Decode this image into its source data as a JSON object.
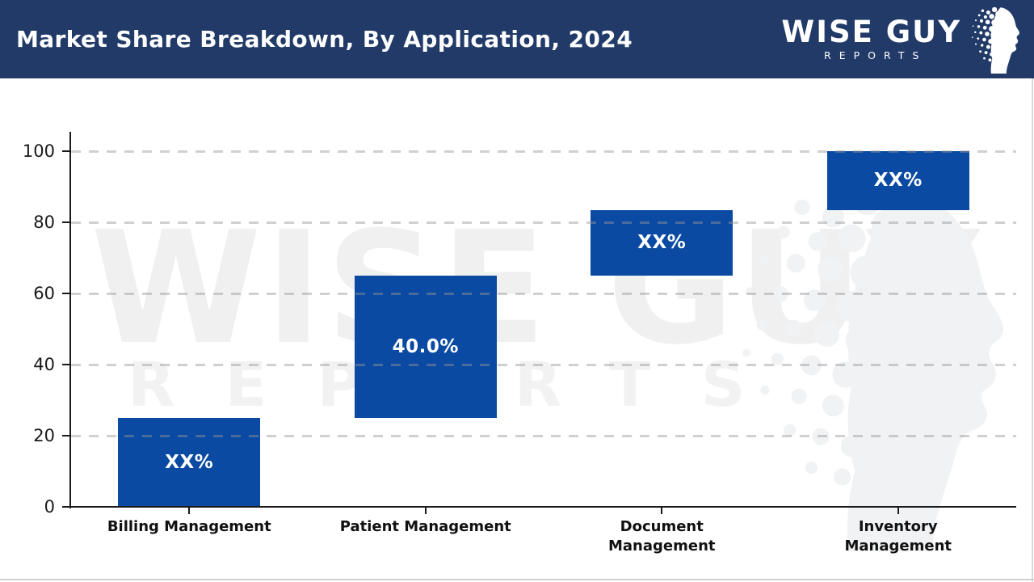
{
  "header": {
    "title": "Market Share Breakdown, By Application, 2024",
    "logo": {
      "wordmark": "WISE GUY",
      "subtext": "REPORTS"
    }
  },
  "watermark": {
    "line1": "WISE GUY",
    "line2": "REPORTS"
  },
  "colors": {
    "header_bg": "#213a68",
    "bar": "#0b4aa2",
    "bar_label": "#ffffff",
    "gridline": "#d9d9d9",
    "axis": "#1a1a1a",
    "watermark": "#f0f0f0"
  },
  "chart_data": {
    "type": "bar",
    "variant": "waterfall",
    "title": "Market Share Breakdown, By Application, 2024",
    "categories": [
      "Billing Management",
      "Patient Management",
      "Document\nManagement",
      "Inventory\nManagement"
    ],
    "bars": [
      {
        "category": "Billing Management",
        "start": 0,
        "end": 25,
        "value": 25,
        "label": "XX%"
      },
      {
        "category": "Patient Management",
        "start": 25,
        "end": 65,
        "value": 40,
        "label": "40.0%"
      },
      {
        "category": "Document Management",
        "start": 65,
        "end": 83.5,
        "value": 18.5,
        "label": "XX%"
      },
      {
        "category": "Inventory Management",
        "start": 83.5,
        "end": 100,
        "value": 16.5,
        "label": "XX%"
      }
    ],
    "ylim": [
      0,
      100
    ],
    "yticks": [
      0,
      20,
      40,
      60,
      80,
      100
    ],
    "xlabel": "",
    "ylabel": "",
    "grid": "horizontal-dashed-over-bars",
    "legend": "none"
  }
}
